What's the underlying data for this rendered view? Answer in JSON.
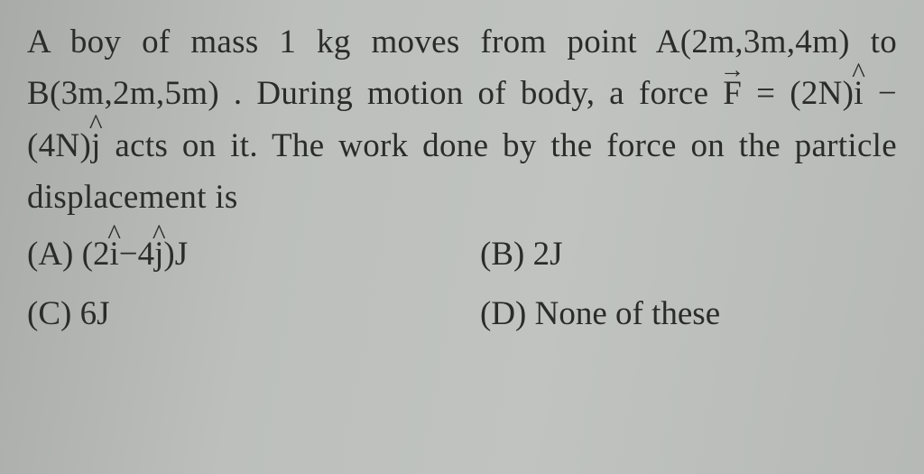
{
  "question": {
    "line1_pre": "A boy of mass 1 kg moves from point A(2m,3m,4m) to B(3m,2m,5m) . During motion of body, a force ",
    "force_vec_sym": "F",
    "force_eq": " = (2N)",
    "i_hat": "i",
    "force_mid": " − (4N)",
    "j_hat": "j",
    "line_tail": " acts on it. The work done by the force on the particle displacement is"
  },
  "options": {
    "A": {
      "label": "(A)",
      "pre": " (2",
      "i": "i",
      "mid": "−4",
      "j": "j",
      "post": ")J"
    },
    "B": {
      "label": "(B)",
      "text": " 2J"
    },
    "C": {
      "label": "(C)",
      "text": " 6J"
    },
    "D": {
      "label": "(D)",
      "text": " None of these"
    }
  },
  "style": {
    "text_color": "#2a2c2a",
    "background": "#b9bcb9",
    "font_size_body": 37,
    "font_family": "Times New Roman"
  }
}
